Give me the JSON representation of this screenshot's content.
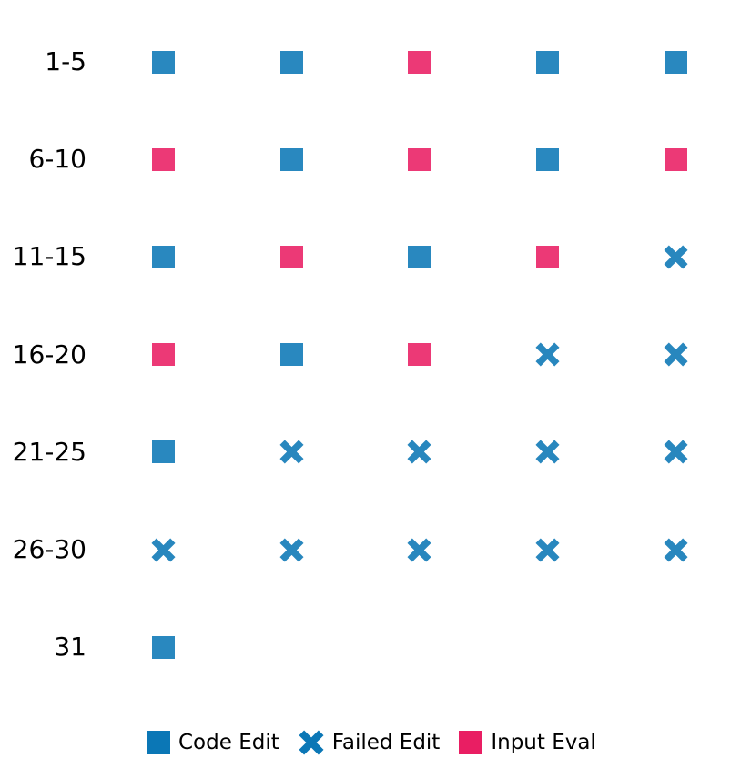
{
  "chart_data": {
    "type": "scatter",
    "title": "",
    "xlabel": "",
    "ylabel": "",
    "description": "Marker grid of per-item edit outcomes, 5 items per row, grouped by item ranges",
    "columns_per_row": 5,
    "marker_styles": {
      "code_edit": {
        "shape": "square",
        "color": "#0b77b6",
        "name": "code-edit-marker"
      },
      "failed_edit": {
        "shape": "x",
        "color": "#0b77b6",
        "name": "failed-edit-marker"
      },
      "input_eval": {
        "shape": "square",
        "color": "#e91e63",
        "name": "input-eval-marker"
      }
    },
    "rows": [
      {
        "label": "1-5",
        "markers": [
          "code_edit",
          "code_edit",
          "input_eval",
          "code_edit",
          "code_edit"
        ]
      },
      {
        "label": "6-10",
        "markers": [
          "input_eval",
          "code_edit",
          "input_eval",
          "code_edit",
          "input_eval"
        ]
      },
      {
        "label": "11-15",
        "markers": [
          "code_edit",
          "input_eval",
          "code_edit",
          "input_eval",
          "failed_edit"
        ]
      },
      {
        "label": "16-20",
        "markers": [
          "input_eval",
          "code_edit",
          "input_eval",
          "failed_edit",
          "failed_edit"
        ]
      },
      {
        "label": "21-25",
        "markers": [
          "code_edit",
          "failed_edit",
          "failed_edit",
          "failed_edit",
          "failed_edit"
        ]
      },
      {
        "label": "26-30",
        "markers": [
          "failed_edit",
          "failed_edit",
          "failed_edit",
          "failed_edit",
          "failed_edit"
        ]
      },
      {
        "label": "31",
        "markers": [
          "code_edit"
        ]
      }
    ],
    "legend": [
      {
        "label": "Code Edit",
        "marker": "square",
        "color": "#0b77b6",
        "key": "code_edit"
      },
      {
        "label": "Failed Edit",
        "marker": "x",
        "color": "#0b77b6",
        "key": "failed_edit"
      },
      {
        "label": "Input Eval",
        "marker": "square",
        "color": "#e91e63",
        "key": "input_eval"
      }
    ],
    "colors": {
      "blue": "#0b77b6",
      "pink": "#e91e63",
      "text": "#000000",
      "background": "#ffffff"
    },
    "legend_position": "bottom"
  }
}
